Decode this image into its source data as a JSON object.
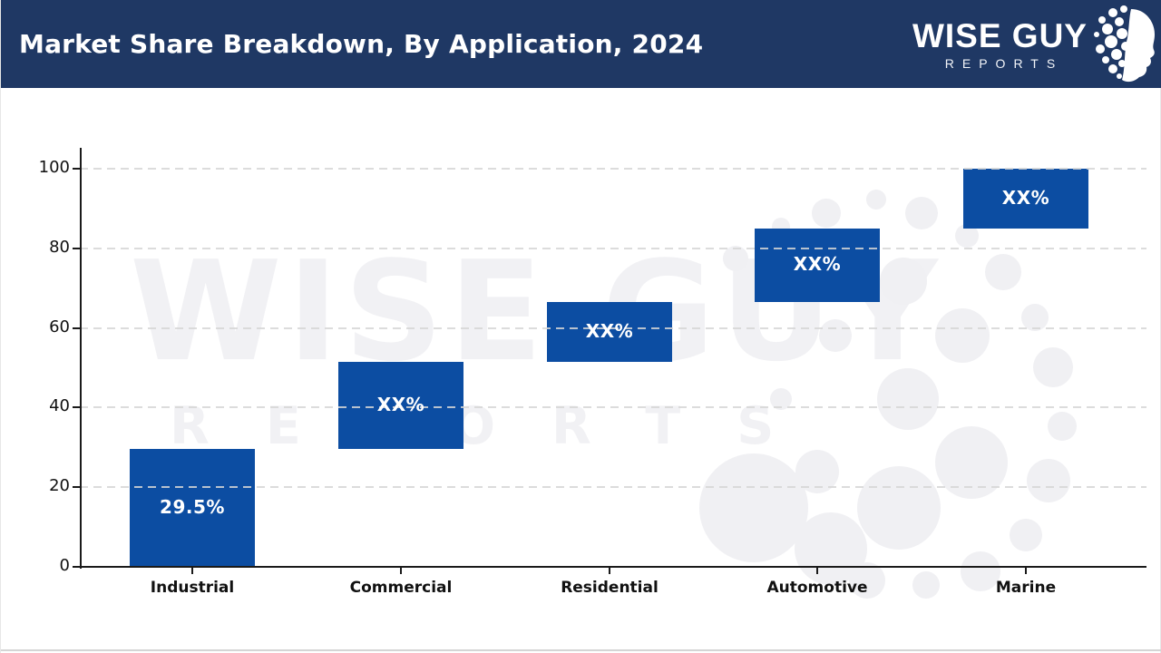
{
  "header": {
    "title": "Market Share Breakdown, By Application, 2024",
    "bg_color": "#1f3864",
    "logo": {
      "line1": "WISE GUY",
      "line2": "REPORTS"
    }
  },
  "icons": {
    "logo_head": "dotted-head-profile",
    "watermark_head": "dotted-head-profile"
  },
  "watermark": {
    "line1": "WISE GUY",
    "line2": "REPORTS"
  },
  "chart_data": {
    "type": "bar",
    "subtype": "waterfall",
    "title": "Market Share Breakdown, By Application, 2024",
    "categories": [
      "Industrial",
      "Commercial",
      "Residential",
      "Automotive",
      "Marine"
    ],
    "segments": [
      {
        "category": "Industrial",
        "start": 0,
        "end": 29.5,
        "label": "29.5%"
      },
      {
        "category": "Commercial",
        "start": 29.5,
        "end": 51.5,
        "label": "XX%"
      },
      {
        "category": "Residential",
        "start": 51.5,
        "end": 66.5,
        "label": "XX%"
      },
      {
        "category": "Automotive",
        "start": 66.5,
        "end": 85,
        "label": "XX%"
      },
      {
        "category": "Marine",
        "start": 85,
        "end": 100,
        "label": "XX%"
      }
    ],
    "y_ticks": [
      0,
      20,
      40,
      60,
      80,
      100
    ],
    "ylim": [
      0,
      105
    ],
    "xlabel": "",
    "ylabel": "",
    "bar_color": "#0c4da2",
    "label_color": "#ffffff",
    "grid": "horizontal-dashed",
    "legend": "none"
  }
}
